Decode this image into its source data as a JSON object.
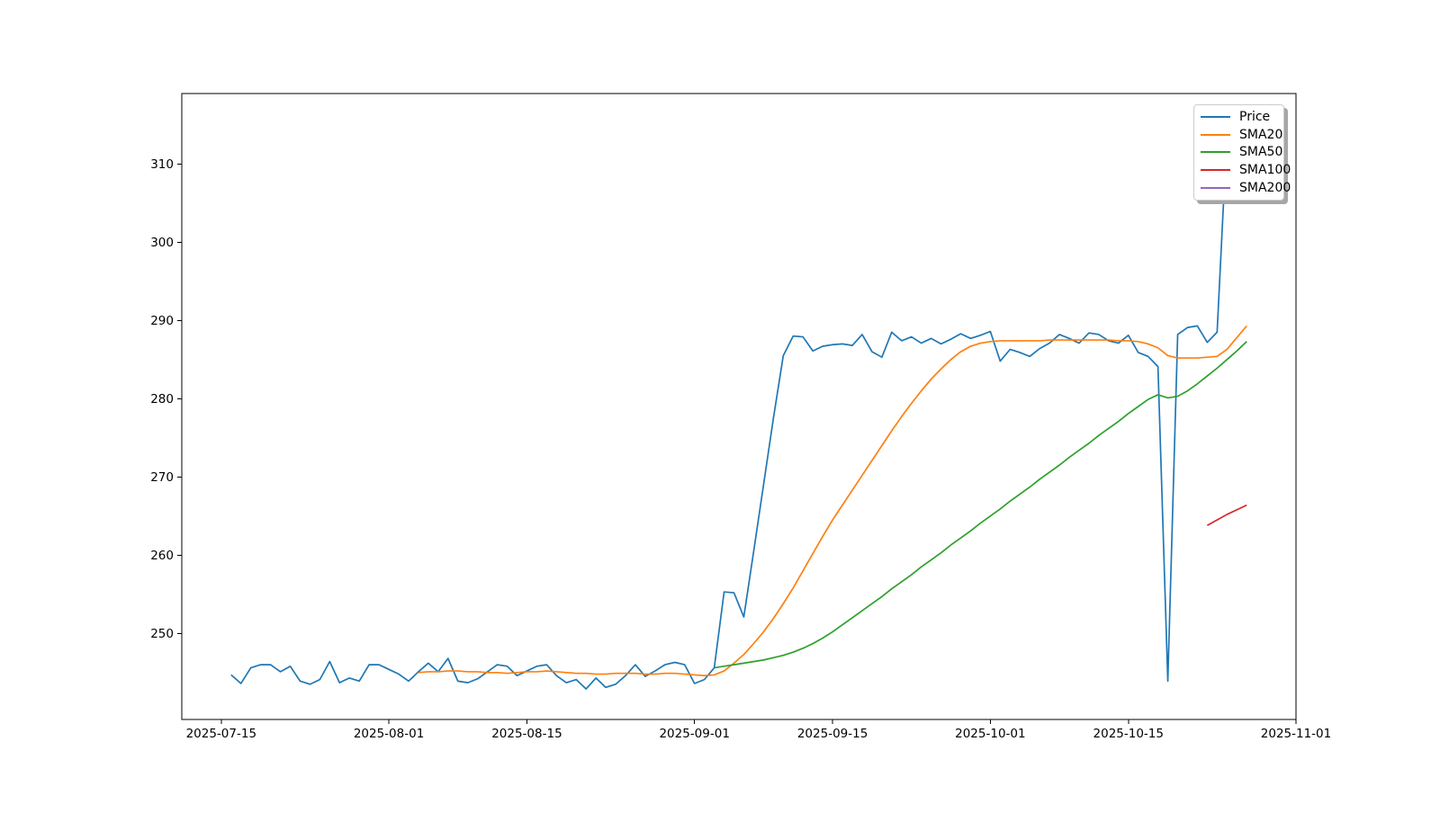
{
  "figure": {
    "background_color": "#ffffff",
    "title": ""
  },
  "legend": {
    "location": "upper right",
    "items": [
      "Price",
      "SMA20",
      "SMA50",
      "SMA100",
      "SMA200"
    ]
  },
  "chart_data": {
    "type": "line",
    "title": "",
    "xlabel": "",
    "ylabel": "",
    "grid": false,
    "legend_position": "upper-right",
    "x_axis": {
      "kind": "date",
      "epoch_label": "2025-07-15",
      "tick_labels": [
        "2025-07-15",
        "2025-08-01",
        "2025-08-15",
        "2025-09-01",
        "2025-09-15",
        "2025-10-01",
        "2025-10-15",
        "2025-11-01"
      ],
      "tick_day_offsets": [
        0,
        17,
        31,
        48,
        62,
        78,
        92,
        109
      ],
      "xlim_day_offsets": [
        -4,
        109
      ]
    },
    "y_axis": {
      "tick_labels": [
        "250",
        "260",
        "270",
        "280",
        "290",
        "300",
        "310"
      ],
      "tick_values": [
        250,
        260,
        270,
        280,
        290,
        300,
        310
      ],
      "ylim": [
        239.0,
        319.0
      ]
    },
    "series": [
      {
        "name": "Price",
        "color": "#1f77b4",
        "start_day_offset": 1,
        "values": [
          244.7,
          243.6,
          245.6,
          246.0,
          246.0,
          245.1,
          245.8,
          243.9,
          243.5,
          244.1,
          246.4,
          243.7,
          244.3,
          243.9,
          246.0,
          246.0,
          245.4,
          244.8,
          243.9,
          245.1,
          246.2,
          245.1,
          246.8,
          243.9,
          243.7,
          244.2,
          245.1,
          246.0,
          245.8,
          244.6,
          245.2,
          245.8,
          246.0,
          244.6,
          243.7,
          244.1,
          242.9,
          244.3,
          243.1,
          243.5,
          244.6,
          246.0,
          244.5,
          245.2,
          246.0,
          246.3,
          246.0,
          243.6,
          244.1,
          245.6,
          255.3,
          255.2,
          252.1,
          260.5,
          269.0,
          277.5,
          285.5,
          288.0,
          287.9,
          286.1,
          286.7,
          286.9,
          287.0,
          286.8,
          288.2,
          286.0,
          285.3,
          288.5,
          287.4,
          287.9,
          287.1,
          287.7,
          287.0,
          287.6,
          288.3,
          287.7,
          288.1,
          288.6,
          284.8,
          286.3,
          285.9,
          285.4,
          286.4,
          287.1,
          288.2,
          287.7,
          287.1,
          288.4,
          288.2,
          287.4,
          287.1,
          288.1,
          285.9,
          285.4,
          284.1,
          243.9,
          288.2,
          289.1,
          289.3,
          287.2,
          288.5,
          314.0,
          315.0,
          316.5
        ]
      },
      {
        "name": "SMA20",
        "color": "#ff7f0e",
        "start_day_offset": 20,
        "values": [
          245.0,
          245.1,
          245.1,
          245.2,
          245.2,
          245.1,
          245.1,
          245.0,
          245.0,
          244.9,
          245.0,
          245.1,
          245.1,
          245.2,
          245.1,
          245.0,
          244.9,
          244.9,
          244.8,
          244.8,
          244.9,
          244.9,
          244.9,
          244.8,
          244.8,
          244.9,
          244.9,
          244.8,
          244.7,
          244.6,
          244.7,
          245.2,
          246.2,
          247.3,
          248.7,
          250.2,
          251.9,
          253.8,
          255.8,
          258.0,
          260.2,
          262.4,
          264.5,
          266.4,
          268.3,
          270.2,
          272.1,
          274.0,
          275.9,
          277.7,
          279.4,
          281.0,
          282.5,
          283.8,
          285.0,
          286.0,
          286.7,
          287.1,
          287.3,
          287.4,
          287.4,
          287.4,
          287.4,
          287.4,
          287.5,
          287.5,
          287.5,
          287.5,
          287.5,
          287.5,
          287.5,
          287.4,
          287.4,
          287.3,
          287.0,
          286.5,
          285.5,
          285.2,
          285.2,
          285.2,
          285.3,
          285.4,
          286.3,
          287.8,
          289.3
        ]
      },
      {
        "name": "SMA50",
        "color": "#2ca02c",
        "start_day_offset": 50,
        "values": [
          245.6,
          245.8,
          246.0,
          246.2,
          246.4,
          246.6,
          246.9,
          247.2,
          247.6,
          248.1,
          248.7,
          249.4,
          250.2,
          251.1,
          252.0,
          252.9,
          253.8,
          254.7,
          255.7,
          256.6,
          257.5,
          258.5,
          259.4,
          260.3,
          261.3,
          262.2,
          263.1,
          264.1,
          265.0,
          265.9,
          266.9,
          267.8,
          268.7,
          269.7,
          270.6,
          271.5,
          272.5,
          273.4,
          274.3,
          275.3,
          276.2,
          277.1,
          278.1,
          279.0,
          279.9,
          280.5,
          280.1,
          280.3,
          281.0,
          281.9,
          282.9,
          283.9,
          285.0,
          286.1,
          287.3
        ]
      },
      {
        "name": "SMA100",
        "color": "#d62728",
        "start_day_offset": 100,
        "values": [
          263.8,
          264.5,
          265.2,
          265.8,
          266.4
        ]
      },
      {
        "name": "SMA200",
        "color": "#9467bd",
        "start_day_offset": 200,
        "values": []
      }
    ]
  }
}
